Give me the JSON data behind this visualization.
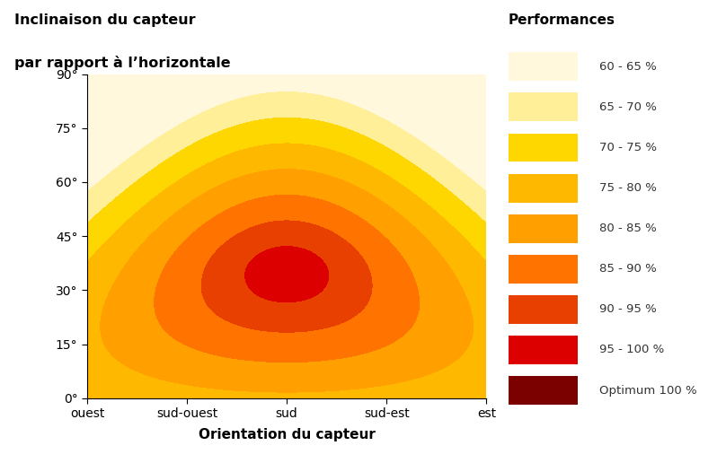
{
  "title_line1": "Inclinaison du capteur",
  "title_line2": "par rapport à l’horizontale",
  "xlabel": "Orientation du capteur",
  "x_ticks": [
    "ouest",
    "sud-ouest",
    "sud",
    "sud-est",
    "est"
  ],
  "y_ticks": [
    "0°",
    "15°",
    "30°",
    "45°",
    "60°",
    "75°",
    "90°"
  ],
  "legend_title": "Performances",
  "legend_labels": [
    "60 - 65 %",
    "65 - 70 %",
    "70 - 75 %",
    "75 - 80 %",
    "80 - 85 %",
    "85 - 90 %",
    "90 - 95 %",
    "95 - 100 %",
    "Optimum 100 %"
  ],
  "legend_colors": [
    "#FFF8DC",
    "#FFEF99",
    "#FFD700",
    "#FFB800",
    "#FFA000",
    "#FF7400",
    "#E84000",
    "#DD0000",
    "#7B0000"
  ],
  "background_color": "#ffffff",
  "levels": [
    60,
    65,
    70,
    75,
    80,
    85,
    90,
    95,
    100,
    101
  ],
  "colors": [
    "#FFF8DC",
    "#FFEF99",
    "#FFD700",
    "#FFB800",
    "#FFA000",
    "#FF7400",
    "#E84000",
    "#DD0000",
    "#7B0000"
  ]
}
